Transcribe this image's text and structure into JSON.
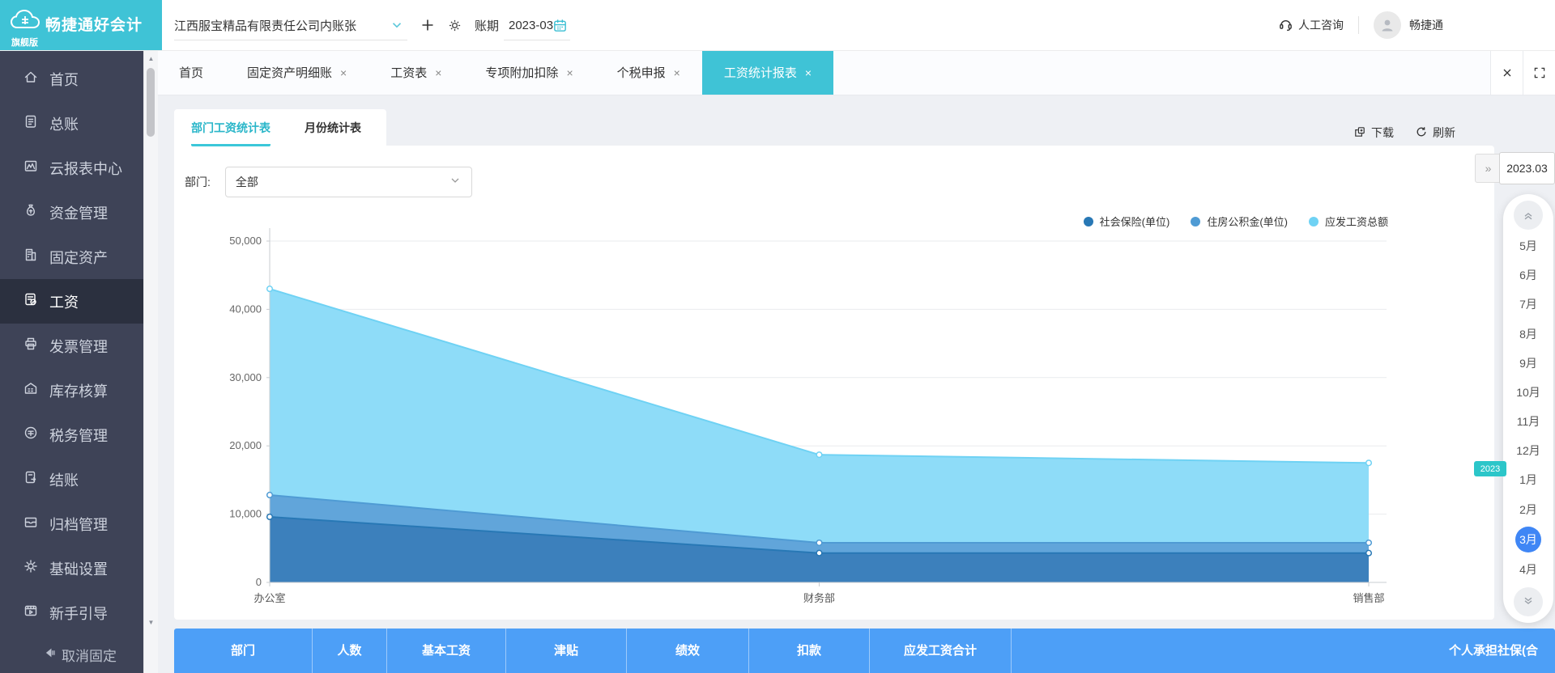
{
  "header": {
    "brand": {
      "name": "畅捷通好会计",
      "edition": "旗舰版"
    },
    "company": "江西服宝精品有限责任公司内账张",
    "period_label": "账期",
    "period_value": "2023-03",
    "support": "人工咨询",
    "user": "畅捷通"
  },
  "sidebar": {
    "items": [
      {
        "label": "首页",
        "icon": "home",
        "active": false
      },
      {
        "label": "总账",
        "icon": "ledger",
        "active": false
      },
      {
        "label": "云报表中心",
        "icon": "cloud-report",
        "active": false
      },
      {
        "label": "资金管理",
        "icon": "funds",
        "active": false
      },
      {
        "label": "固定资产",
        "icon": "assets",
        "active": false
      },
      {
        "label": "工资",
        "icon": "salary",
        "active": true
      },
      {
        "label": "发票管理",
        "icon": "invoice",
        "active": false
      },
      {
        "label": "库存核算",
        "icon": "inventory",
        "active": false
      },
      {
        "label": "税务管理",
        "icon": "tax",
        "active": false
      },
      {
        "label": "结账",
        "icon": "closing",
        "active": false
      },
      {
        "label": "归档管理",
        "icon": "archive",
        "active": false
      },
      {
        "label": "基础设置",
        "icon": "settings",
        "active": false
      },
      {
        "label": "新手引导",
        "icon": "guide",
        "active": false
      }
    ],
    "unpin_label": "取消固定"
  },
  "doc_tabs": [
    {
      "label": "首页",
      "closable": false,
      "active": false
    },
    {
      "label": "固定资产明细账",
      "closable": true,
      "active": false
    },
    {
      "label": "工资表",
      "closable": true,
      "active": false
    },
    {
      "label": "专项附加扣除",
      "closable": true,
      "active": false
    },
    {
      "label": "个税申报",
      "closable": true,
      "active": false
    },
    {
      "label": "工资统计报表",
      "closable": true,
      "active": true
    }
  ],
  "report": {
    "tabs": [
      {
        "label": "部门工资统计表",
        "active": true
      },
      {
        "label": "月份统计表",
        "active": false
      }
    ],
    "download_label": "下载",
    "refresh_label": "刷新",
    "filter_label": "部门:",
    "filter_value": "全部"
  },
  "chart_data": {
    "type": "area",
    "categories": [
      "办公室",
      "财务部",
      "销售部"
    ],
    "series": [
      {
        "name": "社会保险(单位)",
        "color": "#2878b5",
        "fill": "#3c80bc",
        "values": [
          9600,
          4300,
          4300
        ]
      },
      {
        "name": "住房公积金(单位)",
        "color": "#4f9bd4",
        "fill": "#61a5da",
        "values": [
          12800,
          5800,
          5800
        ]
      },
      {
        "name": "应发工资总额",
        "color": "#6fd2f4",
        "fill": "#8edcf8",
        "values": [
          43000,
          18700,
          17500
        ]
      }
    ],
    "ylim": [
      0,
      50000
    ],
    "ytick_step": 10000,
    "grid": true,
    "legend_position": "top-right"
  },
  "month_panel": {
    "collapse_handle": "»",
    "period": "2023.03",
    "year_badge": "2023",
    "months": [
      "5月",
      "6月",
      "7月",
      "8月",
      "9月",
      "10月",
      "11月",
      "12月",
      "1月",
      "2月",
      "3月",
      "4月"
    ],
    "active_month": "3月"
  },
  "table": {
    "columns": [
      "部门",
      "人数",
      "基本工资",
      "津贴",
      "绩效",
      "扣款",
      "应发工资合计",
      "个人承担社保(合"
    ]
  },
  "colors": {
    "brand_teal": "#3fc3d6",
    "sidebar_bg": "#3e4357",
    "sidebar_active_bg": "#2b303f",
    "accent_blue": "#3f86f5",
    "table_header_bg": "#4d9ff7",
    "year_badge_bg": "#2cc6c9",
    "page_bg": "#eef0f4",
    "inner_tab_teal": "#2ab6c9"
  }
}
